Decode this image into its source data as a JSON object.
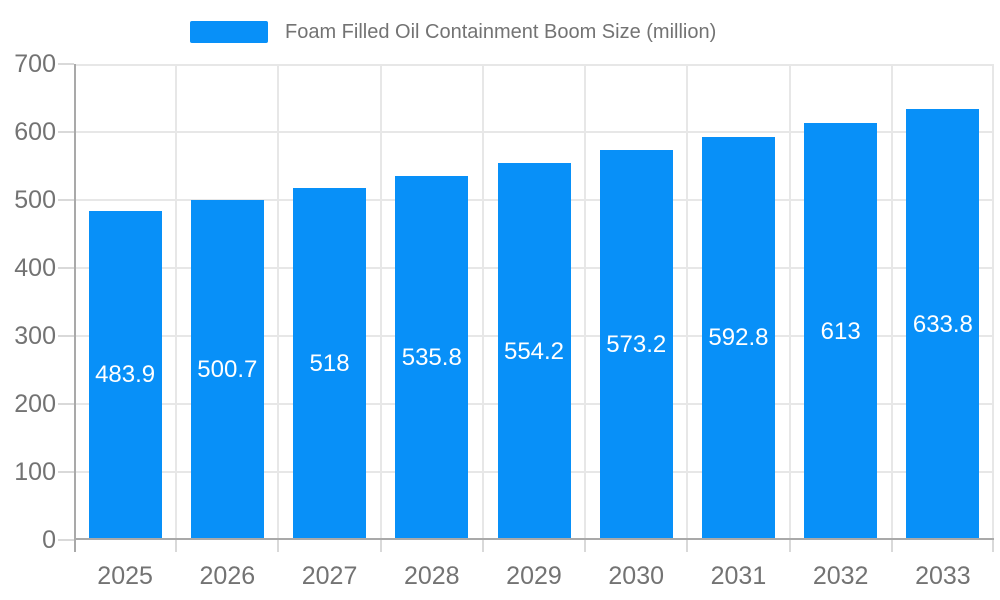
{
  "chart_data": {
    "type": "bar",
    "title": "Foam Filled Oil Containment Boom Size (million)",
    "legend": [
      "Foam Filled Oil Containment Boom Size (million)"
    ],
    "legend_position": "top",
    "categories": [
      "2025",
      "2026",
      "2027",
      "2028",
      "2029",
      "2030",
      "2031",
      "2032",
      "2033"
    ],
    "series": [
      {
        "name": "Foam Filled Oil Containment Boom Size (million)",
        "values": [
          483.9,
          500.7,
          518,
          535.8,
          554.2,
          573.2,
          592.8,
          613,
          633.8
        ]
      }
    ],
    "value_labels": [
      "483.9",
      "500.7",
      "518",
      "535.8",
      "554.2",
      "573.2",
      "592.8",
      "613",
      "633.8"
    ],
    "xlabel": "",
    "ylabel": "",
    "ylim": [
      0,
      700
    ],
    "yticks": [
      0,
      100,
      200,
      300,
      400,
      500,
      600,
      700
    ],
    "grid": true
  },
  "colors": {
    "bar": "#0890f8",
    "axis_line": "#a9a9a9",
    "gridline": "#e7e7e7",
    "tick": "#d9d9d9",
    "axis_text": "#737373",
    "legend_text": "#737373",
    "value_text": "#ffffff",
    "background": "#ffffff"
  }
}
